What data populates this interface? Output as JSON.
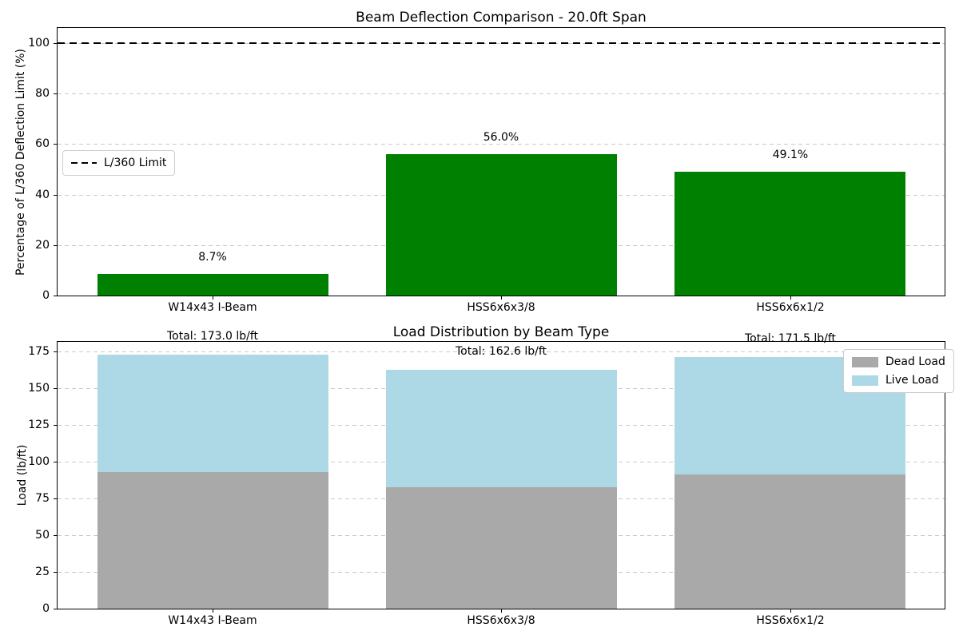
{
  "page": {
    "background": "#ffffff"
  },
  "colors": {
    "deflection_bar": "#008000",
    "dead_load": "#a9a9a9",
    "live_load": "#add8e6",
    "limit_line": "#000000",
    "grid": "#c9c9c9"
  },
  "chart_data": [
    {
      "type": "bar",
      "title": "Beam Deflection Comparison - 20.0ft Span",
      "ylabel": "Percentage of L/360 Deflection Limit (%)",
      "xlabel": "",
      "categories": [
        "W14x43 I-Beam",
        "HSS6x6x3/8",
        "HSS6x6x1/2"
      ],
      "values": [
        8.7,
        56.0,
        49.1
      ],
      "value_labels": [
        "8.7%",
        "56.0%",
        "49.1%"
      ],
      "bar_color": "#008000",
      "yticks": [
        0,
        20,
        40,
        60,
        80,
        100
      ],
      "ylim": [
        0,
        106
      ],
      "grid": true,
      "legend_position": "center-left",
      "reference_line": {
        "value": 100,
        "color": "#000000",
        "style": "dashed"
      },
      "legend": {
        "entries": [
          {
            "label": "L/360 Limit",
            "swatch": "dashed-line",
            "color": "#000000"
          }
        ]
      }
    },
    {
      "type": "stacked-bar",
      "title": "Load Distribution by Beam Type",
      "ylabel": "Load (lb/ft)",
      "xlabel": "",
      "categories": [
        "W14x43 I-Beam",
        "HSS6x6x3/8",
        "HSS6x6x1/2"
      ],
      "series": [
        {
          "name": "Dead Load",
          "color": "#a9a9a9",
          "values": [
            93.0,
            82.6,
            91.5
          ]
        },
        {
          "name": "Live Load",
          "color": "#add8e6",
          "values": [
            80.0,
            80.0,
            80.0
          ]
        }
      ],
      "totals": [
        173.0,
        162.6,
        171.5
      ],
      "total_labels": [
        "Total: 173.0 lb/ft",
        "Total: 162.6 lb/ft",
        "Total: 171.5 lb/ft"
      ],
      "yticks": [
        0,
        25,
        50,
        75,
        100,
        125,
        150,
        175
      ],
      "ylim": [
        0,
        181.7
      ],
      "grid": true,
      "legend_position": "top-right",
      "legend": {
        "entries": [
          {
            "label": "Dead Load",
            "swatch": "patch",
            "color": "#a9a9a9"
          },
          {
            "label": "Live Load",
            "swatch": "patch",
            "color": "#add8e6"
          }
        ]
      }
    }
  ]
}
